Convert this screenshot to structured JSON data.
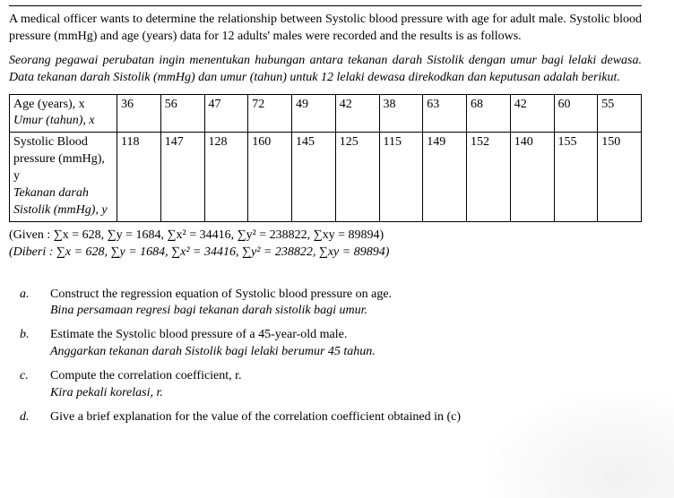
{
  "intro_en": "A medical officer wants to determine the relationship between Systolic blood pressure with age for adult male. Systolic blood pressure (mmHg) and age (years) data for 12 adults' males were recorded and the results is as follows.",
  "intro_it": "Seorang pegawai perubatan ingin menentukan hubungan antara tekanan darah Sistolik dengan umur bagi lelaki dewasa. Data tekanan darah Sistolik (mmHg) dan umur (tahun) untuk 12 lelaki dewasa direkodkan dan keputusan adalah berikut.",
  "table": {
    "row1": {
      "label_en": "Age (years), x",
      "label_it": "Umur (tahun), x",
      "values": [
        "36",
        "56",
        "47",
        "72",
        "49",
        "42",
        "38",
        "63",
        "68",
        "42",
        "60",
        "55"
      ]
    },
    "row2": {
      "label_en": "Systolic Blood pressure (mmHg), y",
      "label_it": "Tekanan darah Sistolik (mmHg), y",
      "values": [
        "118",
        "147",
        "128",
        "160",
        "145",
        "125",
        "115",
        "149",
        "152",
        "140",
        "155",
        "150"
      ]
    }
  },
  "given_en": "(Given :  ∑x = 628, ∑y = 1684,  ∑x² = 34416, ∑y² = 238822, ∑xy = 89894)",
  "given_it": "(Diberi :  ∑x = 628, ∑y = 1684,  ∑x² = 34416, ∑y² = 238822, ∑xy = 89894)",
  "questions": {
    "a": {
      "label": "a.",
      "en": "Construct the regression equation of Systolic blood pressure on age.",
      "it": "Bina persamaan regresi bagi tekanan darah sistolik bagi umur."
    },
    "b": {
      "label": "b.",
      "en": "Estimate the Systolic blood pressure of a 45-year-old male.",
      "it": "Anggarkan tekanan darah Sistolik bagi lelaki berumur 45 tahun."
    },
    "c": {
      "label": "c.",
      "en": "Compute the correlation coefficient, r.",
      "it": "Kira pekali korelasi, r."
    },
    "d": {
      "label": "d.",
      "en": "Give a brief explanation for the value of the correlation coefficient obtained in (c)",
      "it": ""
    }
  }
}
